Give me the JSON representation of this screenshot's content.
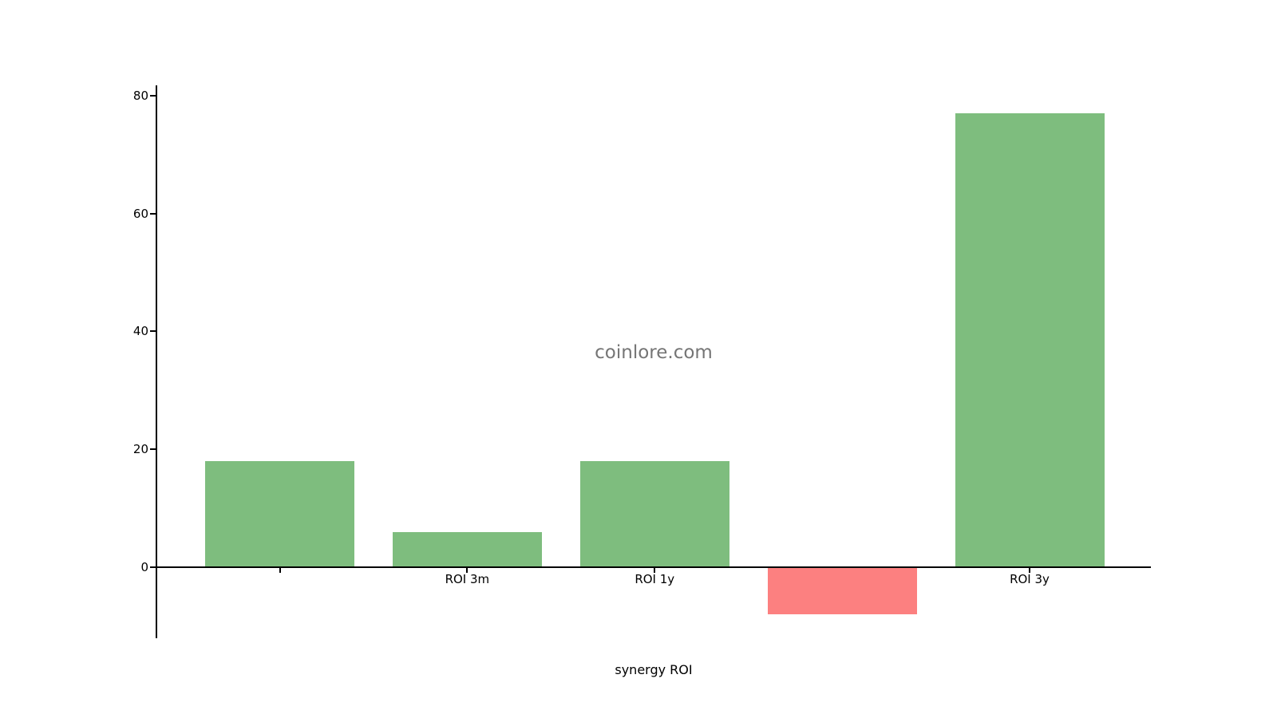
{
  "chart_data": {
    "type": "bar",
    "title": "",
    "categories": [
      "",
      "ROI 3m",
      "ROI 1y",
      "",
      "ROI 3y"
    ],
    "values": [
      18,
      6,
      18,
      -8,
      77
    ],
    "bar_colors": [
      "#7ebd7e",
      "#7ebd7e",
      "#7ebd7e",
      "#fc8080",
      "#7ebd7e"
    ],
    "xlabel": "synergy ROI",
    "ylabel": "",
    "yticks": [
      0,
      20,
      40,
      60,
      80
    ],
    "ylim": [
      -12,
      82
    ],
    "grid": false,
    "legend": "none",
    "watermark": "coinlore.com",
    "colors": {
      "positive": "#7ebd7e",
      "negative": "#fc8080",
      "axis": "#000000",
      "tick_label": "#000000",
      "watermark": "#757575"
    }
  }
}
